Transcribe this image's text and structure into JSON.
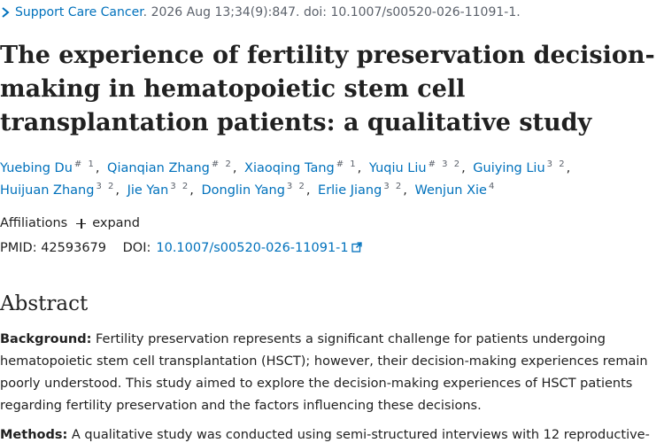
{
  "citation": {
    "journal": "Support Care Cancer",
    "details": ". 2026 Aug 13;34(9):847. doi: 10.1007/s00520-026-11091-1."
  },
  "title": "The experience of fertility preservation decision-making in hematopoietic stem cell transplantation patients: a qualitative study",
  "authors": [
    {
      "name": "Yuebing Du",
      "sup": "# 1"
    },
    {
      "name": "Qianqian Zhang",
      "sup": "# 2"
    },
    {
      "name": "Xiaoqing Tang",
      "sup": "# 1"
    },
    {
      "name": "Yuqiu Liu",
      "sup": "# 3 2"
    },
    {
      "name": "Guiying Liu",
      "sup": "3 2"
    },
    {
      "name": "Huijuan Zhang",
      "sup": "3 2"
    },
    {
      "name": "Jie Yan",
      "sup": "3 2"
    },
    {
      "name": "Donglin Yang",
      "sup": "3 2"
    },
    {
      "name": "Erlie Jiang",
      "sup": "3 2"
    },
    {
      "name": "Wenjun Xie",
      "sup": "4"
    }
  ],
  "affiliations": {
    "label": "Affiliations",
    "expand_label": "expand"
  },
  "identifiers": {
    "pmid_label": "PMID:",
    "pmid": "42593679",
    "doi_label": "DOI:",
    "doi": "10.1007/s00520-026-11091-1"
  },
  "abstract": {
    "heading": "Abstract",
    "background_label": "Background:",
    "background_text": "Fertility preservation represents a significant challenge for patients undergoing hematopoietic stem cell transplantation (HSCT); however, their decision-making experiences remain poorly understood. This study aimed to explore the decision-making experiences of HSCT patients regarding fertility preservation and the factors influencing these decisions.",
    "methods_label": "Methods:",
    "methods_text": "A qualitative study was conducted using semi-structured interviews with 12 reproductive-"
  },
  "colors": {
    "link": "#0071bc",
    "text": "#212121",
    "muted": "#5b616b"
  },
  "icons": {
    "journal": "chevron-right-icon",
    "expand": "plus-icon",
    "doi": "external-link-icon"
  }
}
